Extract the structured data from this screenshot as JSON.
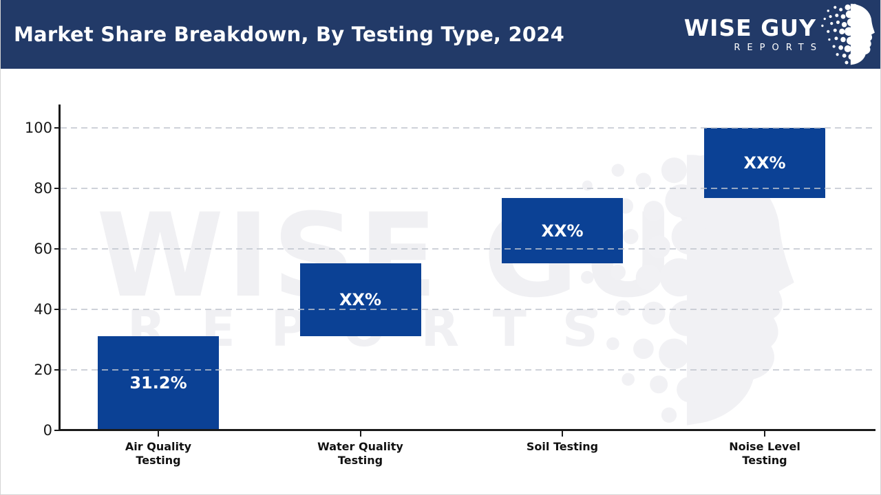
{
  "header": {
    "title": "Market Share Breakdown, By Testing Type, 2024",
    "logo": {
      "line1": "WISE GUY",
      "line2": "REPORTS"
    }
  },
  "watermark": {
    "line1": "WISE GUY",
    "line2": "REPORTS"
  },
  "chart_data": {
    "type": "bar",
    "subtype": "waterfall",
    "title": "Market Share Breakdown, By Testing Type, 2024",
    "categories": [
      "Air Quality\nTesting",
      "Water Quality\nTesting",
      "Soil Testing",
      "Noise Level\nTesting"
    ],
    "bars": [
      {
        "category": "Air Quality Testing",
        "label": "31.2%",
        "start": 0,
        "end": 31.2
      },
      {
        "category": "Water Quality Testing",
        "label": "XX%",
        "start": 31.2,
        "end": 55.2
      },
      {
        "category": "Soil Testing",
        "label": "XX%",
        "start": 55.2,
        "end": 76.8
      },
      {
        "category": "Noise Level Testing",
        "label": "XX%",
        "start": 76.8,
        "end": 100
      }
    ],
    "yticks": [
      0,
      20,
      40,
      60,
      80,
      100
    ],
    "ylim": [
      0,
      105
    ],
    "xlabel": "",
    "ylabel": "",
    "grid": "horizontal-dashed",
    "legend": "none",
    "bar_color": "#0b4195",
    "bar_label_color": "#ffffff",
    "axis_color": "#1a1a1a",
    "grid_color": "#d4d7dc"
  },
  "colors": {
    "header_bg": "#223a68",
    "canvas_bg": "#ffffff",
    "watermark": "#f0f0f3",
    "title_text": "#ffffff"
  }
}
